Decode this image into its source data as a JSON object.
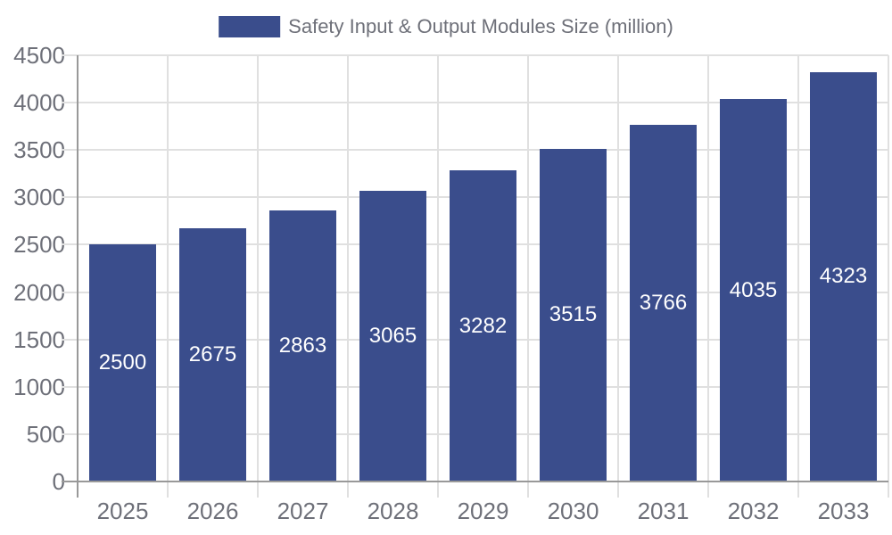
{
  "chart_data": {
    "type": "bar",
    "title": "Safety Input & Output Modules Size (million)",
    "legend": {
      "position": "top",
      "entries": [
        "Safety Input & Output Modules Size (million)"
      ]
    },
    "categories": [
      "2025",
      "2026",
      "2027",
      "2028",
      "2029",
      "2030",
      "2031",
      "2032",
      "2033"
    ],
    "series": [
      {
        "name": "Safety Input & Output Modules Size (million)",
        "values": [
          2500,
          2675,
          2863,
          3065,
          3282,
          3515,
          3766,
          4035,
          4323
        ]
      }
    ],
    "xlabel": "",
    "ylabel": "",
    "ylim": [
      0,
      4500
    ],
    "yticks": [
      0,
      500,
      1000,
      1500,
      2000,
      2500,
      3000,
      3500,
      4000,
      4500
    ],
    "grid": true,
    "value_labels": "inside-center",
    "colors": {
      "bar": "#3A4D8C",
      "gridline": "#E0E0E0",
      "axis_line": "#999999",
      "axis_text": "#6E7079",
      "value_label_text": "#FFFFFF",
      "background": "#FFFFFF"
    }
  }
}
